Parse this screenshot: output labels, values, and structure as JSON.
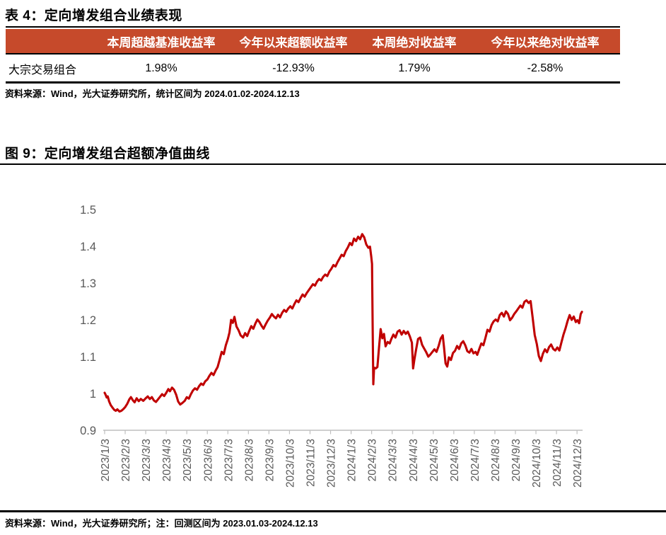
{
  "table": {
    "title": "表 4：定向增发组合业绩表现",
    "columns": [
      "",
      "本周超越基准收益率",
      "今年以来超额收益率",
      "本周绝对收益率",
      "今年以来绝对收益率"
    ],
    "rows": [
      [
        "大宗交易组合",
        "1.98%",
        "-12.93%",
        "1.79%",
        "-2.58%"
      ]
    ],
    "source": "资料来源：Wind，光大证券研究所，统计区间为 2024.01.02-2024.12.13",
    "header_bg": "#C64A2B",
    "header_text_color": "#FFFFFF"
  },
  "figure": {
    "title": "图 9：定向增发组合超额净值曲线",
    "source": "资料来源：Wind，光大证券研究所；注：回测区间为 2023.01.03-2024.12.13"
  },
  "chart_data": {
    "type": "line",
    "title": "定向增发组合超额净值曲线",
    "grid": false,
    "legend": "none",
    "style": {
      "line_color": "#C00000",
      "axis_color": "#BFBFBF",
      "tick_label_color": "#595959"
    },
    "y_axis": {
      "min": 0.9,
      "max": 1.5,
      "ticks": [
        {
          "label": "1.5",
          "value": 1.5
        },
        {
          "label": "1.4",
          "value": 1.4
        },
        {
          "label": "1.3",
          "value": 1.3
        },
        {
          "label": "1.2",
          "value": 1.2
        },
        {
          "label": "1.1",
          "value": 1.1
        },
        {
          "label": "1",
          "value": 1.0
        },
        {
          "label": "0.9",
          "value": 0.9
        }
      ]
    },
    "x_axis": {
      "unit": "month index from 2023/1/3 (one tick per month)",
      "tick_labels": [
        "2023/1/3",
        "2023/2/3",
        "2023/3/3",
        "2023/4/3",
        "2023/5/3",
        "2023/6/3",
        "2023/7/3",
        "2023/8/3",
        "2023/9/3",
        "2023/10/3",
        "2023/11/3",
        "2023/12/3",
        "2024/1/3",
        "2024/2/3",
        "2024/3/3",
        "2024/4/3",
        "2024/5/3",
        "2024/6/3",
        "2024/7/3",
        "2024/8/3",
        "2024/9/3",
        "2024/10/3",
        "2024/11/3",
        "2024/12/3"
      ]
    },
    "series": [
      {
        "name": "定向增发组合超额净值",
        "points": [
          [
            0.0,
            1.002
          ],
          [
            0.05,
            0.996
          ],
          [
            0.1,
            0.989
          ],
          [
            0.15,
            0.992
          ],
          [
            0.22,
            0.978
          ],
          [
            0.3,
            0.968
          ],
          [
            0.38,
            0.962
          ],
          [
            0.46,
            0.956
          ],
          [
            0.54,
            0.953
          ],
          [
            0.62,
            0.957
          ],
          [
            0.72,
            0.951
          ],
          [
            0.82,
            0.953
          ],
          [
            0.92,
            0.958
          ],
          [
            1.0,
            0.963
          ],
          [
            1.1,
            0.972
          ],
          [
            1.2,
            0.984
          ],
          [
            1.28,
            0.99
          ],
          [
            1.38,
            0.981
          ],
          [
            1.46,
            0.976
          ],
          [
            1.56,
            0.987
          ],
          [
            1.66,
            0.979
          ],
          [
            1.76,
            0.985
          ],
          [
            1.88,
            0.98
          ],
          [
            2.0,
            0.987
          ],
          [
            2.1,
            0.992
          ],
          [
            2.2,
            0.985
          ],
          [
            2.3,
            0.99
          ],
          [
            2.4,
            0.981
          ],
          [
            2.5,
            0.977
          ],
          [
            2.6,
            0.984
          ],
          [
            2.7,
            0.991
          ],
          [
            2.8,
            0.998
          ],
          [
            2.9,
            0.993
          ],
          [
            3.0,
            1.002
          ],
          [
            3.1,
            1.012
          ],
          [
            3.18,
            1.006
          ],
          [
            3.28,
            1.016
          ],
          [
            3.38,
            1.01
          ],
          [
            3.48,
            0.997
          ],
          [
            3.58,
            0.978
          ],
          [
            3.68,
            0.97
          ],
          [
            3.78,
            0.974
          ],
          [
            3.9,
            0.98
          ],
          [
            4.0,
            0.99
          ],
          [
            4.1,
            0.986
          ],
          [
            4.2,
            0.998
          ],
          [
            4.3,
            1.008
          ],
          [
            4.4,
            1.014
          ],
          [
            4.5,
            1.01
          ],
          [
            4.6,
            1.02
          ],
          [
            4.7,
            1.027
          ],
          [
            4.8,
            1.023
          ],
          [
            4.9,
            1.033
          ],
          [
            5.0,
            1.038
          ],
          [
            5.1,
            1.048
          ],
          [
            5.2,
            1.056
          ],
          [
            5.3,
            1.05
          ],
          [
            5.4,
            1.062
          ],
          [
            5.5,
            1.072
          ],
          [
            5.6,
            1.092
          ],
          [
            5.7,
            1.113
          ],
          [
            5.8,
            1.107
          ],
          [
            5.9,
            1.131
          ],
          [
            6.0,
            1.148
          ],
          [
            6.08,
            1.166
          ],
          [
            6.16,
            1.2
          ],
          [
            6.24,
            1.192
          ],
          [
            6.32,
            1.208
          ],
          [
            6.42,
            1.182
          ],
          [
            6.52,
            1.172
          ],
          [
            6.62,
            1.158
          ],
          [
            6.74,
            1.152
          ],
          [
            6.84,
            1.164
          ],
          [
            6.94,
            1.156
          ],
          [
            7.04,
            1.17
          ],
          [
            7.14,
            1.183
          ],
          [
            7.24,
            1.176
          ],
          [
            7.34,
            1.19
          ],
          [
            7.44,
            1.201
          ],
          [
            7.54,
            1.194
          ],
          [
            7.64,
            1.184
          ],
          [
            7.74,
            1.176
          ],
          [
            7.84,
            1.188
          ],
          [
            7.94,
            1.198
          ],
          [
            8.04,
            1.206
          ],
          [
            8.14,
            1.216
          ],
          [
            8.24,
            1.209
          ],
          [
            8.34,
            1.204
          ],
          [
            8.44,
            1.214
          ],
          [
            8.54,
            1.207
          ],
          [
            8.64,
            1.219
          ],
          [
            8.74,
            1.227
          ],
          [
            8.84,
            1.222
          ],
          [
            8.94,
            1.231
          ],
          [
            9.04,
            1.237
          ],
          [
            9.14,
            1.231
          ],
          [
            9.24,
            1.243
          ],
          [
            9.34,
            1.253
          ],
          [
            9.44,
            1.248
          ],
          [
            9.54,
            1.259
          ],
          [
            9.64,
            1.269
          ],
          [
            9.74,
            1.263
          ],
          [
            9.84,
            1.273
          ],
          [
            9.94,
            1.281
          ],
          [
            10.04,
            1.289
          ],
          [
            10.14,
            1.297
          ],
          [
            10.24,
            1.293
          ],
          [
            10.34,
            1.304
          ],
          [
            10.44,
            1.311
          ],
          [
            10.54,
            1.307
          ],
          [
            10.64,
            1.317
          ],
          [
            10.74,
            1.323
          ],
          [
            10.84,
            1.319
          ],
          [
            10.94,
            1.331
          ],
          [
            11.04,
            1.339
          ],
          [
            11.14,
            1.349
          ],
          [
            11.24,
            1.345
          ],
          [
            11.34,
            1.357
          ],
          [
            11.44,
            1.367
          ],
          [
            11.54,
            1.377
          ],
          [
            11.64,
            1.373
          ],
          [
            11.74,
            1.387
          ],
          [
            11.84,
            1.397
          ],
          [
            11.94,
            1.409
          ],
          [
            12.04,
            1.403
          ],
          [
            12.14,
            1.421
          ],
          [
            12.24,
            1.414
          ],
          [
            12.34,
            1.426
          ],
          [
            12.44,
            1.419
          ],
          [
            12.54,
            1.433
          ],
          [
            12.64,
            1.424
          ],
          [
            12.74,
            1.405
          ],
          [
            12.84,
            1.396
          ],
          [
            12.92,
            1.399
          ],
          [
            12.98,
            1.372
          ],
          [
            13.02,
            1.352
          ],
          [
            13.05,
            1.18
          ],
          [
            13.08,
            1.025
          ],
          [
            13.12,
            1.07
          ],
          [
            13.2,
            1.068
          ],
          [
            13.28,
            1.072
          ],
          [
            13.36,
            1.125
          ],
          [
            13.44,
            1.175
          ],
          [
            13.52,
            1.15
          ],
          [
            13.6,
            1.162
          ],
          [
            13.68,
            1.128
          ],
          [
            13.78,
            1.14
          ],
          [
            13.88,
            1.136
          ],
          [
            13.96,
            1.148
          ],
          [
            14.06,
            1.16
          ],
          [
            14.16,
            1.152
          ],
          [
            14.26,
            1.168
          ],
          [
            14.36,
            1.172
          ],
          [
            14.46,
            1.16
          ],
          [
            14.56,
            1.17
          ],
          [
            14.66,
            1.162
          ],
          [
            14.76,
            1.168
          ],
          [
            14.86,
            1.155
          ],
          [
            14.96,
            1.138
          ],
          [
            15.02,
            1.068
          ],
          [
            15.08,
            1.092
          ],
          [
            15.16,
            1.118
          ],
          [
            15.26,
            1.148
          ],
          [
            15.36,
            1.152
          ],
          [
            15.46,
            1.132
          ],
          [
            15.56,
            1.122
          ],
          [
            15.66,
            1.112
          ],
          [
            15.76,
            1.1
          ],
          [
            15.86,
            1.106
          ],
          [
            15.96,
            1.113
          ],
          [
            16.06,
            1.12
          ],
          [
            16.16,
            1.113
          ],
          [
            16.26,
            1.129
          ],
          [
            16.36,
            1.149
          ],
          [
            16.46,
            1.158
          ],
          [
            16.52,
            1.128
          ],
          [
            16.6,
            1.082
          ],
          [
            16.68,
            1.073
          ],
          [
            16.76,
            1.098
          ],
          [
            16.86,
            1.091
          ],
          [
            16.96,
            1.11
          ],
          [
            17.06,
            1.116
          ],
          [
            17.16,
            1.129
          ],
          [
            17.26,
            1.121
          ],
          [
            17.36,
            1.136
          ],
          [
            17.46,
            1.142
          ],
          [
            17.56,
            1.131
          ],
          [
            17.66,
            1.115
          ],
          [
            17.76,
            1.111
          ],
          [
            17.86,
            1.121
          ],
          [
            17.96,
            1.109
          ],
          [
            18.06,
            1.113
          ],
          [
            18.14,
            1.105
          ],
          [
            18.24,
            1.121
          ],
          [
            18.34,
            1.136
          ],
          [
            18.44,
            1.131
          ],
          [
            18.54,
            1.151
          ],
          [
            18.64,
            1.173
          ],
          [
            18.74,
            1.168
          ],
          [
            18.84,
            1.186
          ],
          [
            18.94,
            1.196
          ],
          [
            19.04,
            1.201
          ],
          [
            19.14,
            1.196
          ],
          [
            19.24,
            1.213
          ],
          [
            19.34,
            1.219
          ],
          [
            19.44,
            1.209
          ],
          [
            19.54,
            1.223
          ],
          [
            19.64,
            1.216
          ],
          [
            19.74,
            1.199
          ],
          [
            19.84,
            1.206
          ],
          [
            19.94,
            1.216
          ],
          [
            20.04,
            1.223
          ],
          [
            20.14,
            1.231
          ],
          [
            20.24,
            1.239
          ],
          [
            20.34,
            1.233
          ],
          [
            20.44,
            1.249
          ],
          [
            20.54,
            1.253
          ],
          [
            20.64,
            1.246
          ],
          [
            20.74,
            1.251
          ],
          [
            20.84,
            1.206
          ],
          [
            20.94,
            1.159
          ],
          [
            21.04,
            1.135
          ],
          [
            21.14,
            1.102
          ],
          [
            21.24,
            1.088
          ],
          [
            21.34,
            1.108
          ],
          [
            21.44,
            1.12
          ],
          [
            21.54,
            1.112
          ],
          [
            21.64,
            1.126
          ],
          [
            21.74,
            1.133
          ],
          [
            21.84,
            1.121
          ],
          [
            21.94,
            1.117
          ],
          [
            22.04,
            1.125
          ],
          [
            22.14,
            1.117
          ],
          [
            22.24,
            1.139
          ],
          [
            22.34,
            1.16
          ],
          [
            22.44,
            1.177
          ],
          [
            22.54,
            1.197
          ],
          [
            22.64,
            1.213
          ],
          [
            22.74,
            1.2
          ],
          [
            22.84,
            1.209
          ],
          [
            22.94,
            1.194
          ],
          [
            23.02,
            1.199
          ],
          [
            23.1,
            1.191
          ],
          [
            23.18,
            1.216
          ],
          [
            23.24,
            1.222
          ]
        ]
      }
    ]
  }
}
